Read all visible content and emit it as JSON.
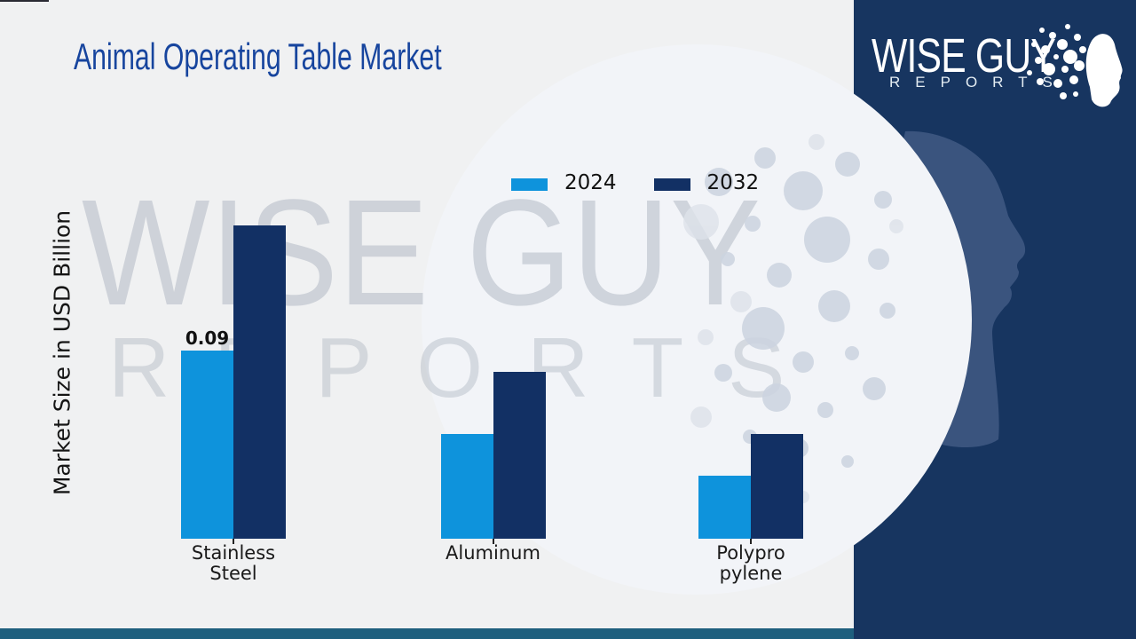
{
  "page": {
    "title": "Animal Operating Table Market",
    "title_color": "#17459e",
    "background_color": "#f0f1f2",
    "footer_bar_color": "#1e5f7e"
  },
  "brand": {
    "logo_line1": "WISE GUY",
    "logo_line2": "REPORTS",
    "panel_color": "#173560",
    "face_silhouette_color": "#3a547e",
    "logo_icon": "head-profile-dots-icon"
  },
  "watermark": {
    "line1": "WISE GUY",
    "line2": "REPORTS"
  },
  "chart_data": {
    "type": "bar",
    "title": "Animal Operating Table Market",
    "categories": [
      "Stainless Steel",
      "Aluminum",
      "Polypropylene"
    ],
    "category_display": [
      [
        "Stainless",
        "Steel"
      ],
      [
        "Aluminum"
      ],
      [
        "Polypro",
        "pylene"
      ]
    ],
    "series": [
      {
        "name": "2024",
        "color": "#0e93dc",
        "values": [
          0.09,
          0.05,
          0.03
        ]
      },
      {
        "name": "2032",
        "color": "#123064",
        "values": [
          0.15,
          0.08,
          0.05
        ]
      }
    ],
    "annotations": [
      {
        "series_index": 0,
        "category_index": 0,
        "text": "0.09"
      }
    ],
    "xlabel": "",
    "ylabel": "Market Size in USD Billion",
    "ylim": [
      0,
      0.155
    ],
    "grid": false,
    "legend_position": "top-center",
    "y_axis_ticks_visible": false,
    "unit": "USD Billion"
  }
}
